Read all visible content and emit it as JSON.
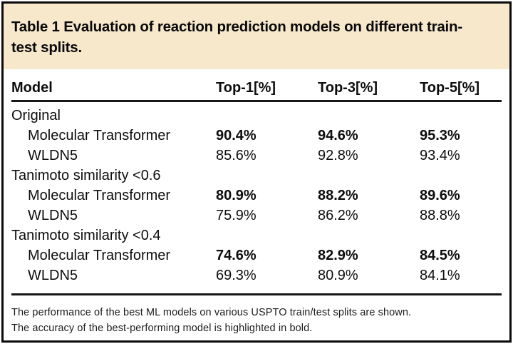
{
  "title": "Table 1 Evaluation of reaction prediction models on different train-test splits.",
  "table": {
    "columns": [
      "Model",
      "Top-1[%]",
      "Top-3[%]",
      "Top-5[%]"
    ],
    "groups": [
      {
        "label": "Original",
        "rows": [
          {
            "model": "Molecular Transformer",
            "top1": "90.4%",
            "top3": "94.6%",
            "top5": "95.3%",
            "bold": true
          },
          {
            "model": "WLDN5",
            "top1": "85.6%",
            "top3": "92.8%",
            "top5": "93.4%",
            "bold": false
          }
        ]
      },
      {
        "label": "Tanimoto similarity <0.6",
        "rows": [
          {
            "model": "Molecular Transformer",
            "top1": "80.9%",
            "top3": "88.2%",
            "top5": "89.6%",
            "bold": true
          },
          {
            "model": "WLDN5",
            "top1": "75.9%",
            "top3": "86.2%",
            "top5": "88.8%",
            "bold": false
          }
        ]
      },
      {
        "label": "Tanimoto similarity <0.4",
        "rows": [
          {
            "model": "Molecular Transformer",
            "top1": "74.6%",
            "top3": "82.9%",
            "top5": "84.5%",
            "bold": true
          },
          {
            "model": "WLDN5",
            "top1": "69.3%",
            "top3": "80.9%",
            "top5": "84.1%",
            "bold": false
          }
        ]
      }
    ]
  },
  "footnote": {
    "line1": "The performance of the best ML models on various USPTO train/test splits are shown.",
    "line2": "The accuracy of the best-performing model is highlighted in bold."
  },
  "colors": {
    "title_background": "#f7e8cc",
    "border": "#0a0a0a",
    "rule": "#161616",
    "text": "#0d0d0d"
  }
}
